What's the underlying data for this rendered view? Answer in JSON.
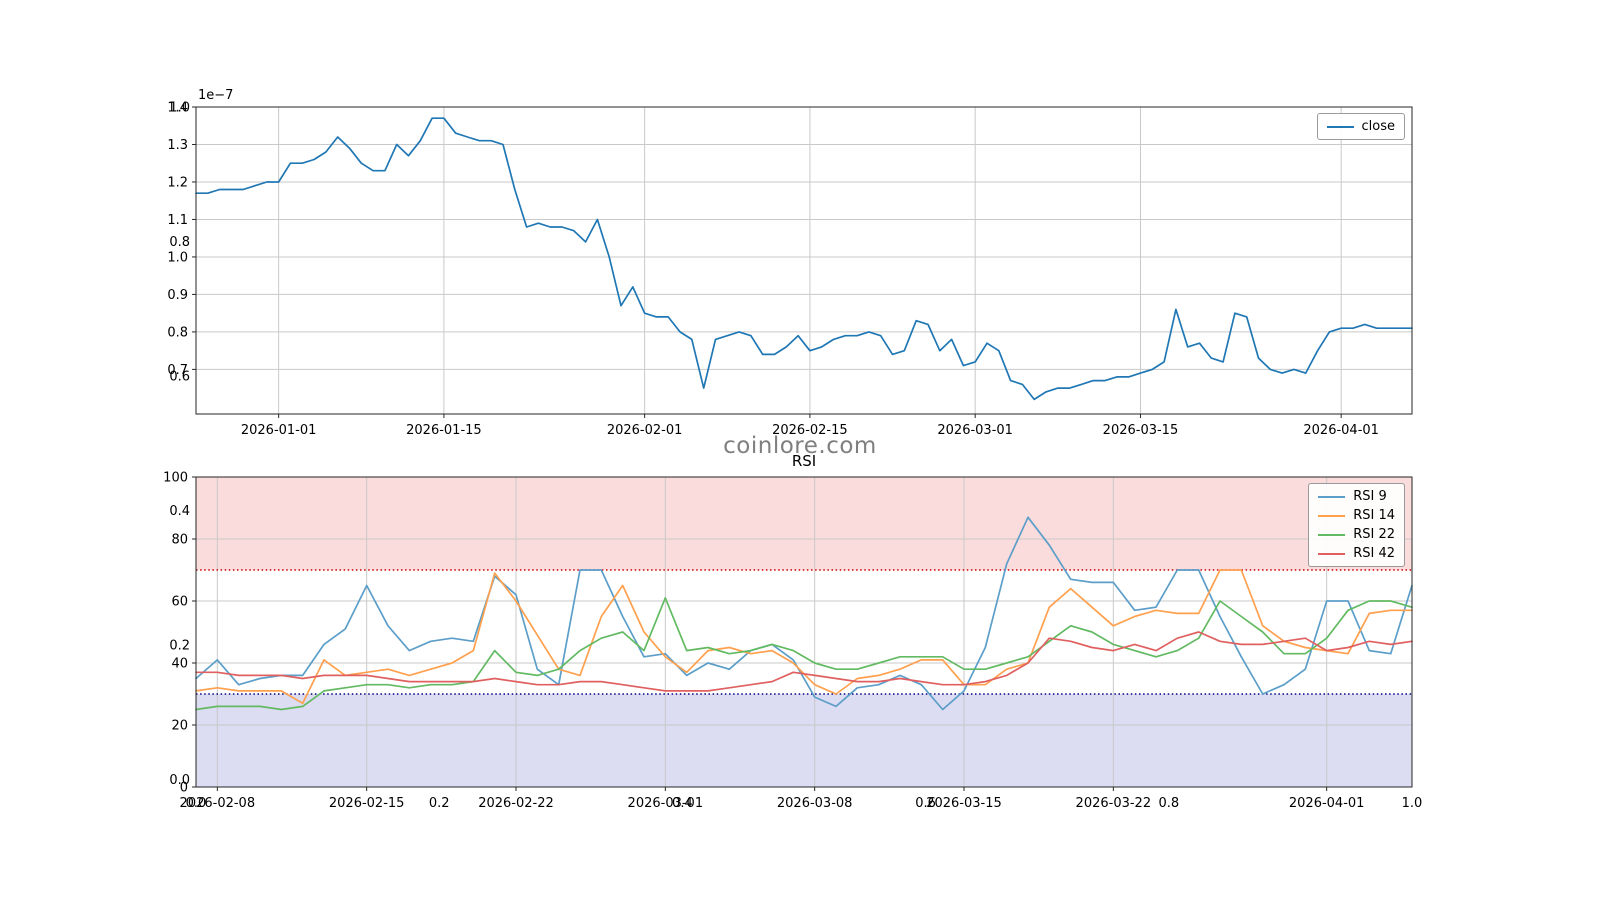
{
  "watermark": {
    "text": "coinlore.com",
    "color": "#7f7f7f"
  },
  "price_chart": {
    "offset_label": "1e−7"
  },
  "rsi_chart": {
    "title": "RSI"
  },
  "overlay_axis": {
    "y_ticks": [
      "1.0",
      "0.8",
      "0.6",
      "0.4",
      "0.2",
      "0.0"
    ],
    "x_ticks": [
      "0.0",
      "0.2",
      "0.4",
      "0.6",
      "0.8",
      "1.0"
    ]
  },
  "chart_data": [
    {
      "type": "line",
      "title": "",
      "ylabel": "",
      "xlabel": "",
      "y_offset_label": "1e−7",
      "grid": true,
      "legend_position": "upper right",
      "x_start": "2025-12-25",
      "x_end": "2026-04-07",
      "x_ticks": [
        "2026-01-01",
        "2026-01-15",
        "2026-02-01",
        "2026-02-15",
        "2026-03-01",
        "2026-03-15",
        "2026-04-01"
      ],
      "y_ticks": [
        "1.4",
        "1.3",
        "1.2",
        "1.1",
        "1.0",
        "0.9",
        "0.8",
        "0.7"
      ],
      "ylim": [
        0.581,
        1.4
      ],
      "series": [
        {
          "name": "close",
          "color": "#1f77b4",
          "values": [
            1.17,
            1.17,
            1.18,
            1.18,
            1.18,
            1.19,
            1.2,
            1.2,
            1.25,
            1.25,
            1.26,
            1.28,
            1.32,
            1.29,
            1.25,
            1.23,
            1.23,
            1.3,
            1.27,
            1.31,
            1.37,
            1.37,
            1.33,
            1.32,
            1.31,
            1.31,
            1.3,
            1.18,
            1.08,
            1.09,
            1.08,
            1.08,
            1.07,
            1.04,
            1.1,
            1.0,
            0.87,
            0.92,
            0.85,
            0.84,
            0.84,
            0.8,
            0.78,
            0.65,
            0.78,
            0.79,
            0.8,
            0.79,
            0.74,
            0.74,
            0.76,
            0.79,
            0.75,
            0.76,
            0.78,
            0.79,
            0.79,
            0.8,
            0.79,
            0.74,
            0.75,
            0.83,
            0.82,
            0.75,
            0.78,
            0.71,
            0.72,
            0.77,
            0.75,
            0.67,
            0.66,
            0.62,
            0.64,
            0.65,
            0.65,
            0.66,
            0.67,
            0.67,
            0.68,
            0.68,
            0.69,
            0.7,
            0.72,
            0.86,
            0.76,
            0.77,
            0.73,
            0.72,
            0.85,
            0.84,
            0.73,
            0.7,
            0.69,
            0.7,
            0.69,
            0.75,
            0.8,
            0.81,
            0.81,
            0.82,
            0.81,
            0.81,
            0.81,
            0.81
          ]
        }
      ]
    },
    {
      "type": "line",
      "title": "RSI",
      "ylabel": "",
      "xlabel": "",
      "grid": true,
      "legend_position": "upper right",
      "x_start": "2026-02-07",
      "x_end": "2026-04-05",
      "x_ticks": [
        "2026-02-08",
        "2026-02-15",
        "2026-02-22",
        "2026-03-01",
        "2026-03-08",
        "2026-03-15",
        "2026-03-22",
        "2026-04-01"
      ],
      "y_ticks": [
        "100",
        "80",
        "60",
        "40",
        "20",
        "0"
      ],
      "ylim": [
        0,
        100
      ],
      "bands": [
        {
          "from": 70,
          "to": 100,
          "color": "#fbdcdc",
          "meaning": "overbought"
        },
        {
          "from": 0,
          "to": 30,
          "color": "#dcdcf2",
          "meaning": "oversold"
        }
      ],
      "hlines": [
        {
          "y": 70,
          "color": "#cc0000",
          "style": "dotted"
        },
        {
          "y": 30,
          "color": "#000080",
          "style": "dotted"
        }
      ],
      "series": [
        {
          "name": "RSI 9",
          "color": "#5b9ec9",
          "values": [
            35,
            41,
            33,
            35,
            36,
            36,
            46,
            51,
            65,
            52,
            44,
            47,
            48,
            47,
            68,
            62,
            38,
            33,
            70,
            70,
            55,
            42,
            43,
            36,
            40,
            38,
            44,
            46,
            41,
            29,
            26,
            32,
            33,
            36,
            33,
            25,
            31,
            45,
            72,
            87,
            78,
            67,
            66,
            66,
            57,
            58,
            70,
            70,
            55,
            42,
            30,
            33,
            38,
            60,
            60,
            44,
            43,
            65
          ]
        },
        {
          "name": "RSI 14",
          "color": "#ffa04e",
          "values": [
            31,
            32,
            31,
            31,
            31,
            27,
            41,
            36,
            37,
            38,
            36,
            38,
            40,
            44,
            69,
            60,
            49,
            38,
            36,
            55,
            65,
            50,
            42,
            37,
            44,
            45,
            43,
            44,
            40,
            33,
            30,
            35,
            36,
            38,
            41,
            41,
            33,
            33,
            38,
            40,
            58,
            64,
            58,
            52,
            55,
            57,
            56,
            56,
            70,
            70,
            52,
            47,
            45,
            44,
            43,
            56,
            57,
            57
          ]
        },
        {
          "name": "RSI 22",
          "color": "#62ba62",
          "values": [
            25,
            26,
            26,
            26,
            25,
            26,
            31,
            32,
            33,
            33,
            32,
            33,
            33,
            34,
            44,
            37,
            36,
            38,
            44,
            48,
            50,
            44,
            61,
            44,
            45,
            43,
            44,
            46,
            44,
            40,
            38,
            38,
            40,
            42,
            42,
            42,
            38,
            38,
            40,
            42,
            47,
            52,
            50,
            46,
            44,
            42,
            44,
            48,
            60,
            55,
            50,
            43,
            43,
            48,
            57,
            60,
            60,
            58
          ]
        },
        {
          "name": "RSI 42",
          "color": "#e06060",
          "values": [
            37,
            37,
            36,
            36,
            36,
            35,
            36,
            36,
            36,
            35,
            34,
            34,
            34,
            34,
            35,
            34,
            33,
            33,
            34,
            34,
            33,
            32,
            31,
            31,
            31,
            32,
            33,
            34,
            37,
            36,
            35,
            34,
            34,
            35,
            34,
            33,
            33,
            34,
            36,
            40,
            48,
            47,
            45,
            44,
            46,
            44,
            48,
            50,
            47,
            46,
            46,
            47,
            48,
            44,
            45,
            47,
            46,
            47
          ]
        }
      ]
    }
  ]
}
